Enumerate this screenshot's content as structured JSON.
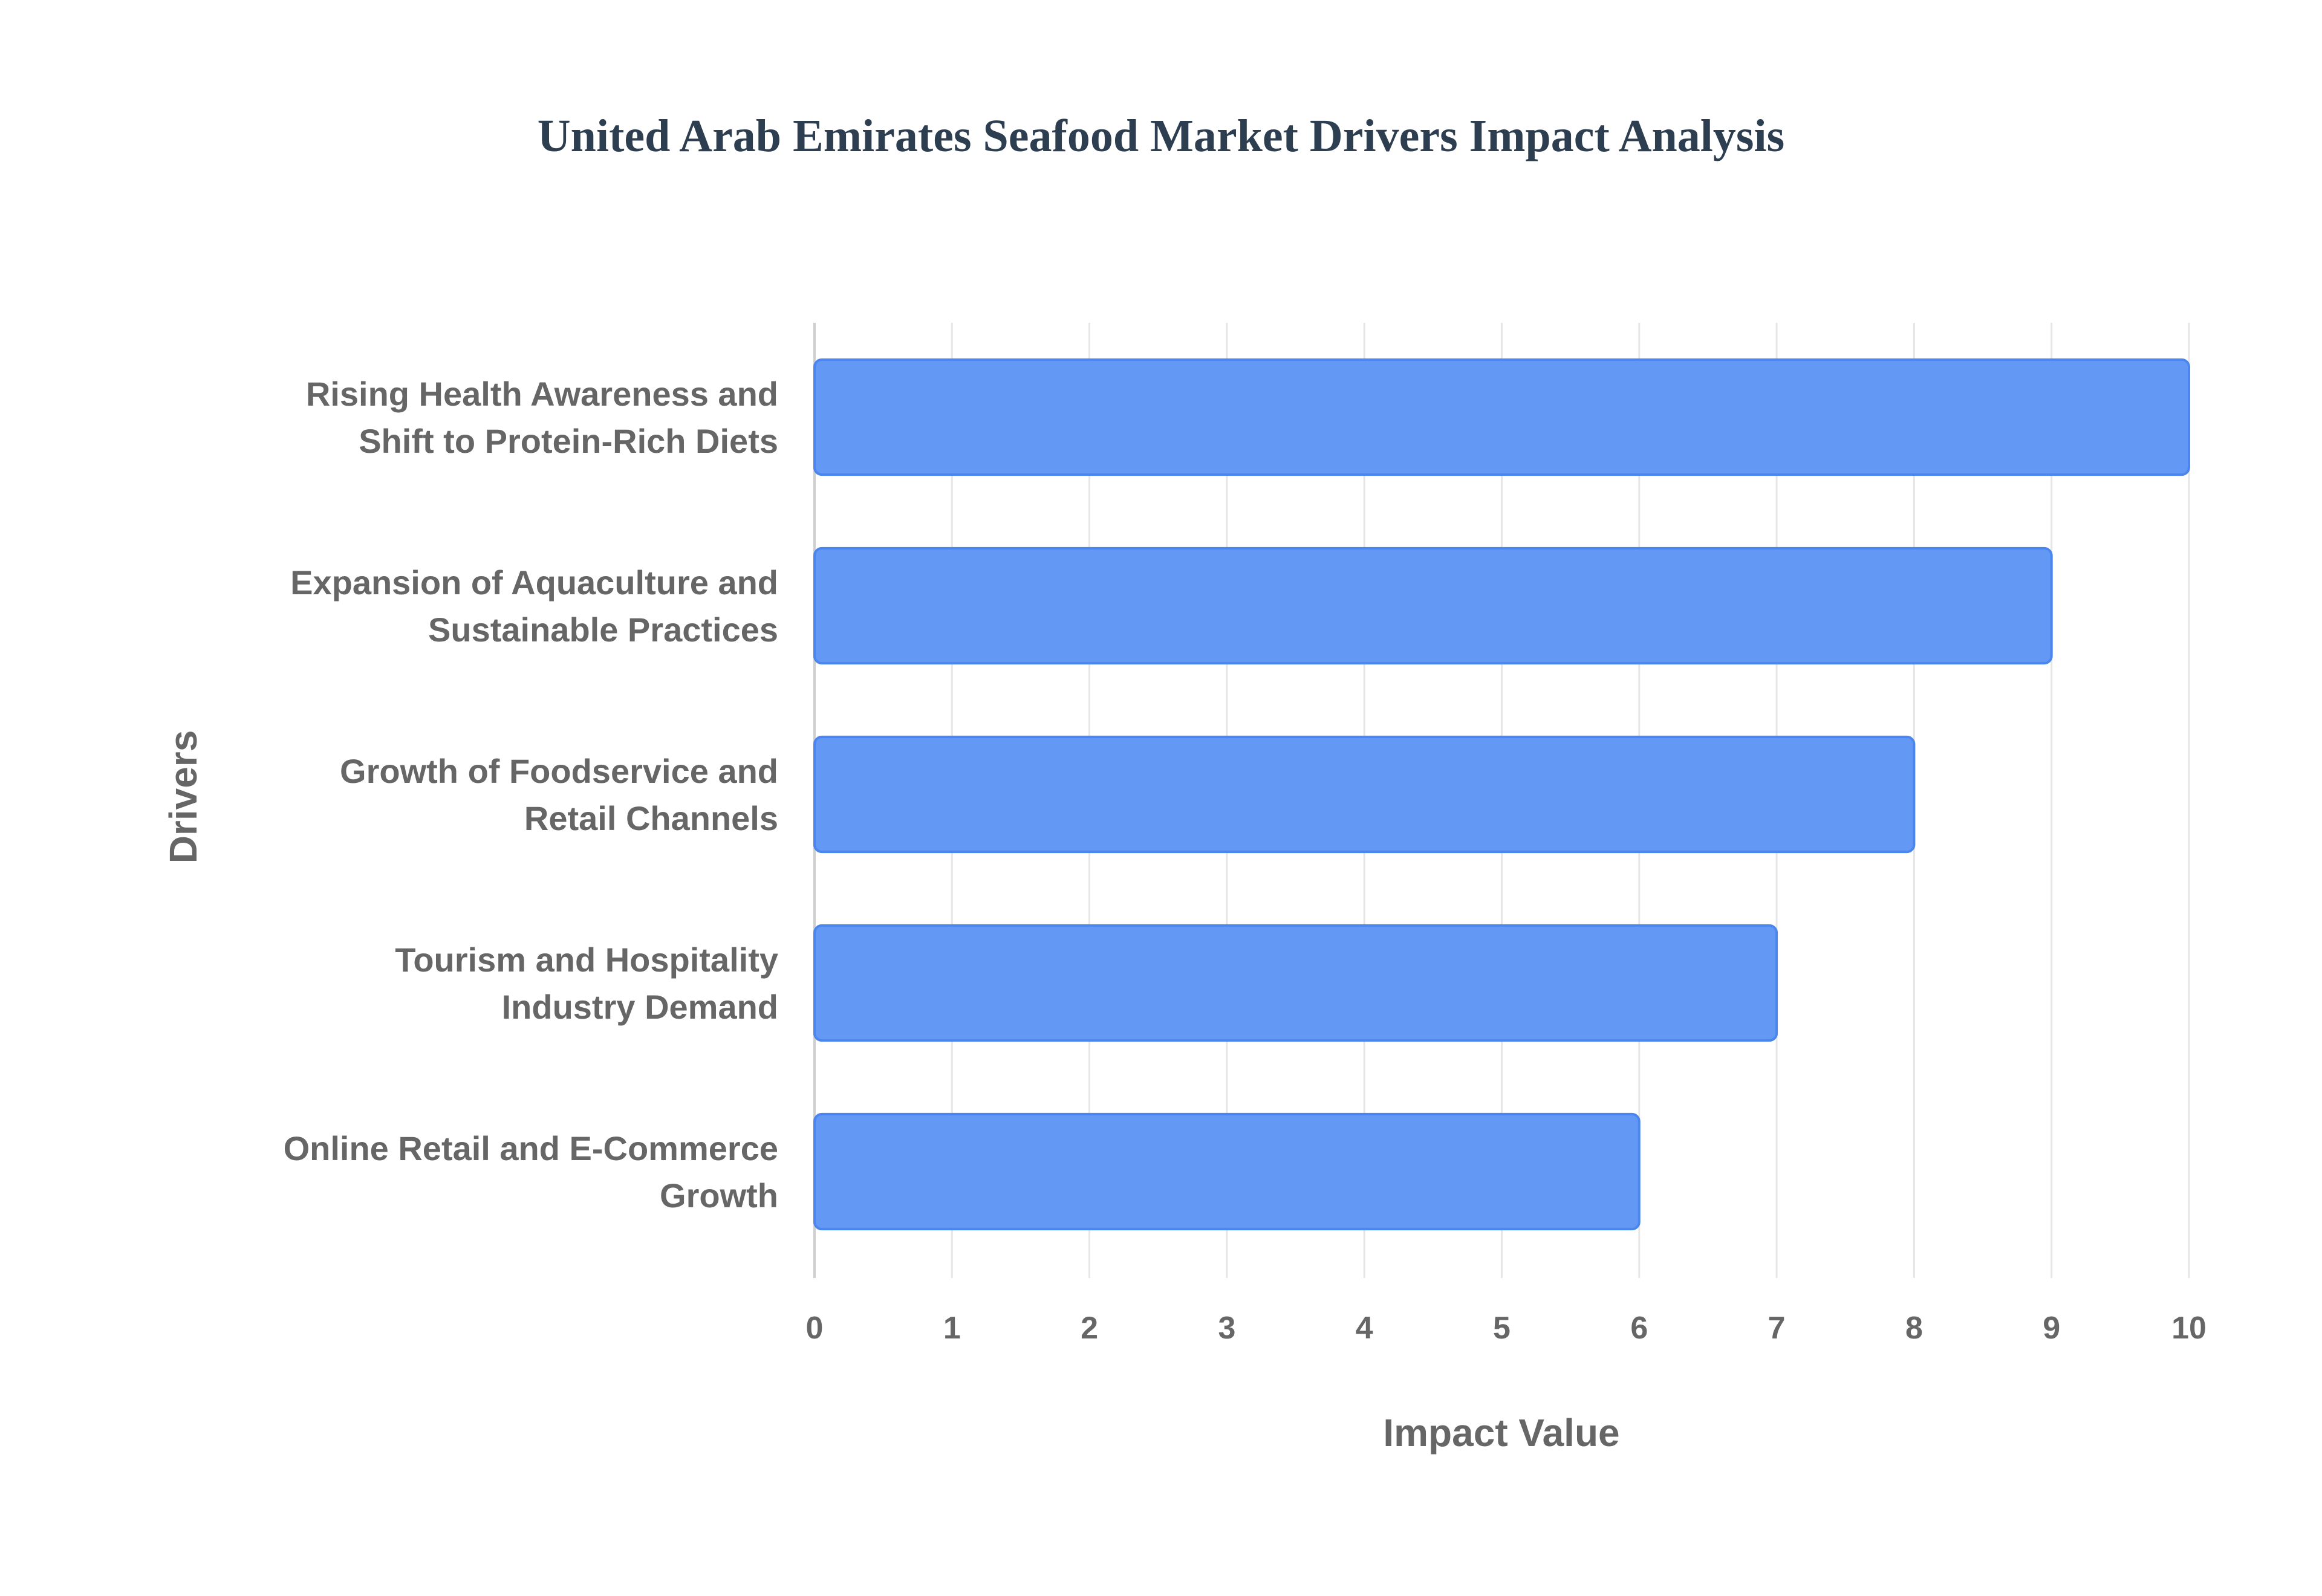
{
  "chart_data": {
    "type": "bar",
    "orientation": "horizontal",
    "title": "United Arab Emirates Seafood Market Drivers Impact Analysis",
    "xlabel": "Impact Value",
    "ylabel": "Drivers",
    "xlim": [
      0,
      10
    ],
    "xticks": [
      "0",
      "1",
      "2",
      "3",
      "4",
      "5",
      "6",
      "7",
      "8",
      "9",
      "10"
    ],
    "grid": true,
    "categories": [
      [
        "Rising Health Awareness and",
        "Shift to Protein-Rich Diets"
      ],
      [
        "Expansion of Aquaculture and",
        "Sustainable Practices"
      ],
      [
        "Growth of Foodservice and",
        "Retail Channels"
      ],
      [
        "Tourism and Hospitality",
        "Industry Demand"
      ],
      [
        "Online Retail and E-Commerce",
        "Growth"
      ]
    ],
    "values": [
      10,
      9,
      8,
      7,
      6
    ],
    "colors": {
      "bar_fill": "#6399f5",
      "bar_border": "#4a86ee",
      "grid": "#e6e6e6"
    }
  }
}
